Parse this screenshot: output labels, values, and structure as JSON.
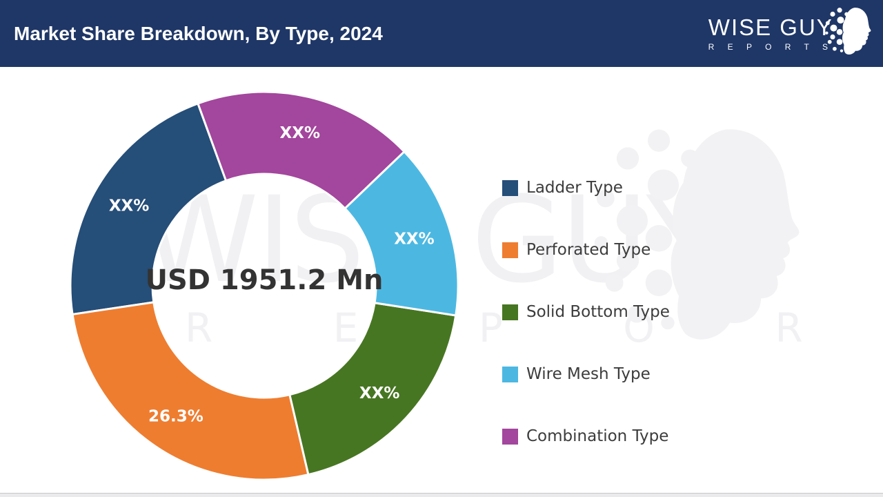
{
  "header": {
    "title": "Market Share Breakdown, By Type, 2024",
    "logo": {
      "line1": "WISE GUY",
      "line2": "R E P O R T S"
    }
  },
  "watermark": {
    "line1": "WISE GUY",
    "line2": "R E P O R T S"
  },
  "icons": {
    "logo_face": "wiseguy-face-icon",
    "watermark_face": "wiseguy-face-watermark-icon"
  },
  "chart_data": {
    "type": "donut",
    "title": "Market Share Breakdown, By Type, 2024",
    "center_label": "USD 1951.2 Mn",
    "start_angle_deg": 110,
    "direction": "ccw",
    "inner_radius_ratio": 0.577,
    "gap_color": "#ffffff",
    "segments": [
      {
        "label": "Ladder Type",
        "display": "XX%",
        "value": 21.8,
        "color": "#254e78"
      },
      {
        "label": "Perforated Type",
        "display": "26.3%",
        "value": 26.3,
        "color": "#ee7d30"
      },
      {
        "label": "Solid Bottom Type",
        "display": "XX%",
        "value": 18.9,
        "color": "#477622"
      },
      {
        "label": "Wire Mesh Type",
        "display": "XX%",
        "value": 14.6,
        "color": "#4cb8e2"
      },
      {
        "label": "Combination Type",
        "display": "XX%",
        "value": 18.4,
        "color": "#a3469d"
      }
    ],
    "legend_position": "right"
  }
}
